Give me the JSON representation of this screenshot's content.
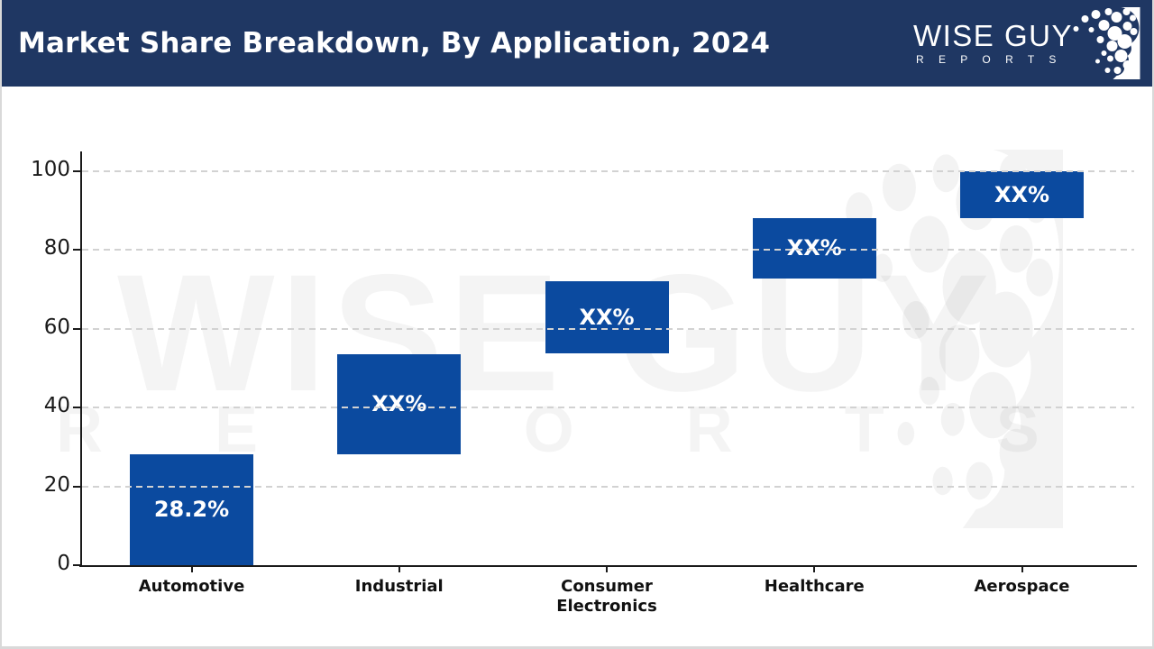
{
  "header": {
    "title": "Market Share Breakdown, By Application, 2024",
    "bg_color": "#1f3763",
    "logo": {
      "name": "WISE GUY",
      "subtitle": "R E P O R T S"
    }
  },
  "watermark": {
    "line1": "WISE GUY",
    "line2": "R E P O R T S"
  },
  "chart_data": {
    "type": "bar",
    "subtype": "floating-waterfall",
    "title": "Market Share Breakdown, By Application, 2024",
    "categories": [
      "Automotive",
      "Industrial",
      "Consumer Electronics",
      "Healthcare",
      "Aerospace"
    ],
    "segments": [
      {
        "category": "Automotive",
        "start": 0,
        "end": 28.2,
        "label": "28.2%"
      },
      {
        "category": "Industrial",
        "start": 28.2,
        "end": 53.6,
        "label": "XX%"
      },
      {
        "category": "Consumer Electronics",
        "start": 53.8,
        "end": 72.1,
        "label": "XX%"
      },
      {
        "category": "Healthcare",
        "start": 72.6,
        "end": 88.1,
        "label": "XX%"
      },
      {
        "category": "Aerospace",
        "start": 88.1,
        "end": 100,
        "label": "XX%"
      }
    ],
    "ylim": [
      0,
      105
    ],
    "yticks": [
      0,
      20,
      40,
      60,
      80,
      100
    ],
    "xlabel": "",
    "ylabel": "",
    "grid": "horizontal-dashed",
    "legend": "none",
    "bar_color": "#0b4a9f",
    "bar_label_color": "#ffffff",
    "axis_color": "#1a1a1a",
    "grid_color": "#d2d2d2"
  }
}
